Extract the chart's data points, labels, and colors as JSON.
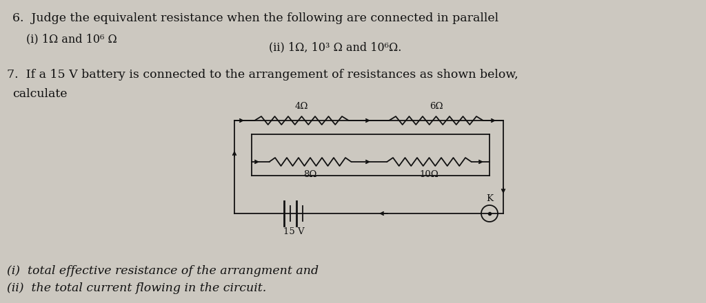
{
  "background_color": "#ccc8c0",
  "title_text": "6.  Judge the equivalent resistance when the following are connected in parallel",
  "sub_i_text": "(i) 1Ω and 10⁶ Ω",
  "sub_ii_text": "(ii) 1Ω, 10³ Ω and 10⁶Ω.",
  "q7_text": "7.  If a 15 V battery is connected to the arrangement of resistances as shown below,",
  "q7_cont": "calculate",
  "bottom_i": "(i)  total effective resistance of the arrangment and",
  "bottom_ii": "(ii)  the total current flowing in the circuit.",
  "circuit": {
    "top_resistors": [
      "4Ω",
      "6Ω"
    ],
    "mid_resistors": [
      "8Ω",
      "10Ω"
    ],
    "battery_label": "15 V",
    "key_label": "K"
  },
  "text_color": "#111111",
  "line_color": "#111111",
  "font_size_main": 12.5,
  "font_size_small": 11.5,
  "font_size_circuit": 9.5
}
